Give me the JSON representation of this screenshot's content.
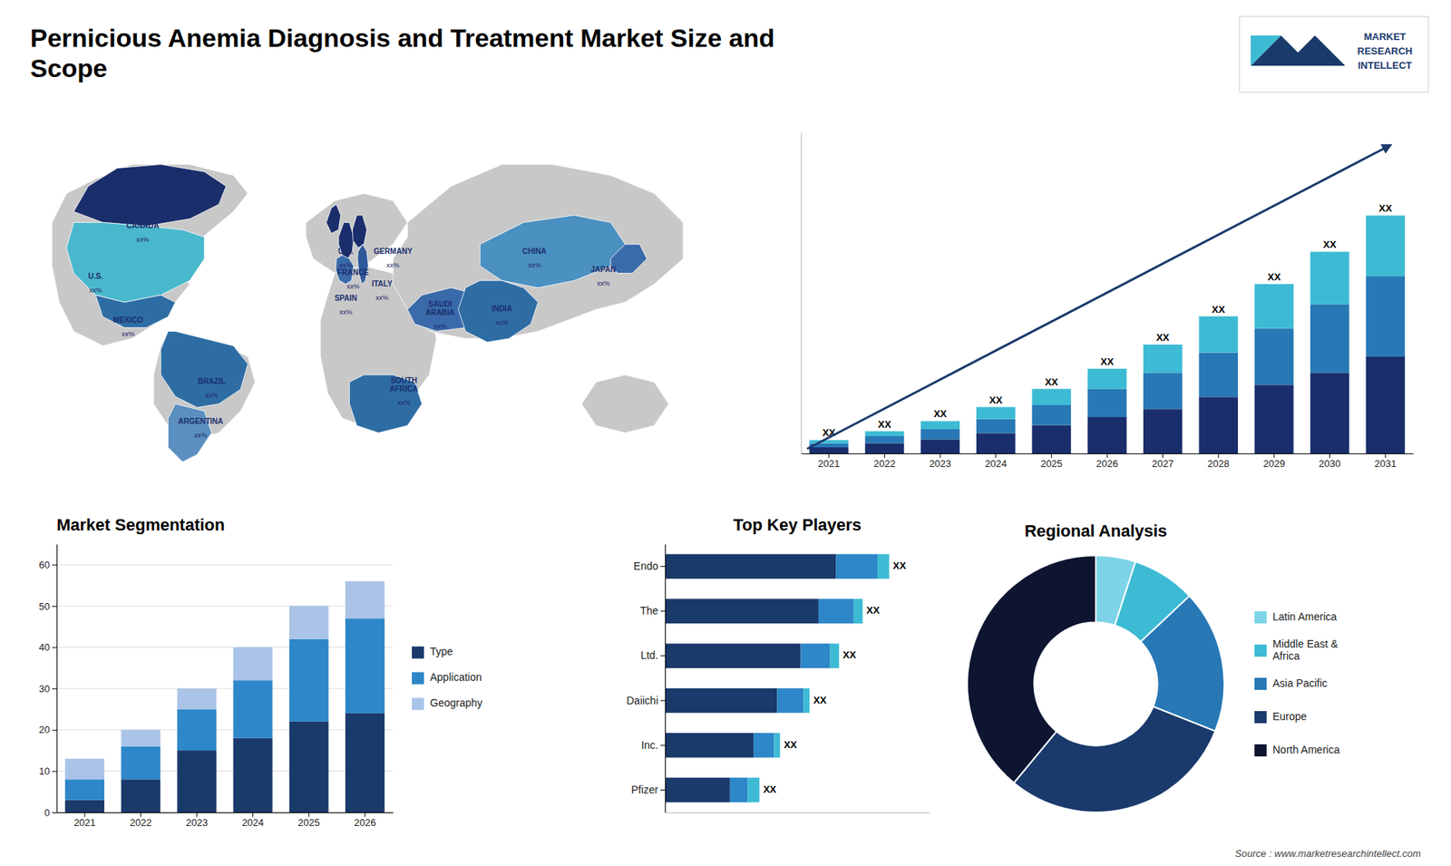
{
  "title": "Pernicious Anemia Diagnosis and Treatment Market Size and\nScope",
  "annotations": [
    "MARKET",
    "RESEARCH",
    "INTELLECT",
    "Source : www.marketresearchintellect.com"
  ],
  "chart_data": [
    {
      "type": "map",
      "categories": [
        "CANADA",
        "U.S.",
        "MEXICO",
        "BRAZIL",
        "ARGENTINA",
        "U.K.",
        "FRANCE",
        "SPAIN",
        "GERMANY",
        "ITALY",
        "SAUDI\nARABIA",
        "SOUTH\nAFRICA",
        "CHINA",
        "INDIA",
        "JAPAN"
      ],
      "annotations": [
        "xx%",
        "xx%",
        "xx%",
        "xx%",
        "xx%",
        "xx%",
        "xx%",
        "xx%",
        "xx%",
        "xx%",
        "xx%",
        "xx%",
        "xx%",
        "xx%",
        "xx%"
      ]
    },
    {
      "type": "bar",
      "stacked": true,
      "categories": [
        "2021",
        "2022",
        "2023",
        "2024",
        "2025",
        "2026",
        "2027",
        "2028",
        "2029",
        "2030",
        "2031"
      ],
      "series": [
        {
          "color": "#1a2e6c",
          "values": [
            1.5,
            2.5,
            3.5,
            5,
            7,
            9,
            11,
            14,
            17,
            20,
            24
          ]
        },
        {
          "color": "#2878b5",
          "values": [
            1.0,
            1.8,
            2.5,
            3.5,
            5,
            7,
            9,
            11,
            14,
            17,
            20
          ]
        },
        {
          "color": "#3dbbd4",
          "values": [
            0.8,
            1.2,
            2.0,
            3.0,
            4,
            5,
            7,
            9,
            11,
            13,
            15
          ]
        }
      ],
      "ylim": [
        0,
        79.65
      ],
      "tick_labels": "x",
      "annotations": [
        "XX",
        "XX",
        "XX",
        "XX",
        "XX",
        "XX",
        "XX",
        "XX",
        "XX",
        "XX",
        "XX"
      ]
    },
    {
      "type": "bar",
      "title": "Market Segmentation",
      "stacked": true,
      "categories": [
        "2021",
        "2022",
        "2023",
        "2024",
        "2025",
        "2026"
      ],
      "series": [
        {
          "name": "Type",
          "color": "#1a3a6b",
          "values": [
            3,
            8,
            15,
            18,
            22,
            24
          ]
        },
        {
          "name": "Application",
          "color": "#2e87c8",
          "values": [
            5,
            8,
            10,
            14,
            20,
            23
          ]
        },
        {
          "name": "Geography",
          "color": "#aac4e8",
          "values": [
            5,
            4,
            5,
            8,
            8,
            9
          ]
        }
      ],
      "ylim": [
        0,
        65
      ],
      "yticks": [
        0,
        10,
        20,
        30,
        40,
        50,
        60
      ],
      "grid": true,
      "legend": "right"
    },
    {
      "type": "bar",
      "title": "Top Key Players",
      "orientation": "horizontal",
      "stacked": true,
      "categories": [
        "Endo",
        "The",
        "Ltd.",
        "Daiichi",
        "Inc.",
        "Pfizer"
      ],
      "series": [
        {
          "color": "#1a3a6b",
          "values": [
            0.58,
            0.52,
            0.46,
            0.38,
            0.3,
            0.22
          ]
        },
        {
          "color": "#2e87c8",
          "values": [
            0.14,
            0.12,
            0.1,
            0.09,
            0.07,
            0.06
          ]
        },
        {
          "color": "#3dbbd4",
          "values": [
            0.04,
            0.03,
            0.03,
            0.02,
            0.02,
            0.04
          ]
        }
      ],
      "xlim": [
        0,
        0.8968
      ],
      "tick_labels": "y",
      "annotations": [
        "XX",
        "XX",
        "XX",
        "XX",
        "XX",
        "XX"
      ]
    },
    {
      "type": "pie",
      "title": "Regional Analysis",
      "categories": [
        "Latin America",
        "Middle East &\nAfrica",
        "Asia Pacific",
        "Europe",
        "North America"
      ],
      "values": [
        5,
        8,
        18,
        30,
        39
      ],
      "colors": [
        "#7dd4e8",
        "#3dbbd4",
        "#2878b5",
        "#1a3a6b",
        "#0d1530"
      ],
      "legend": "right"
    }
  ]
}
